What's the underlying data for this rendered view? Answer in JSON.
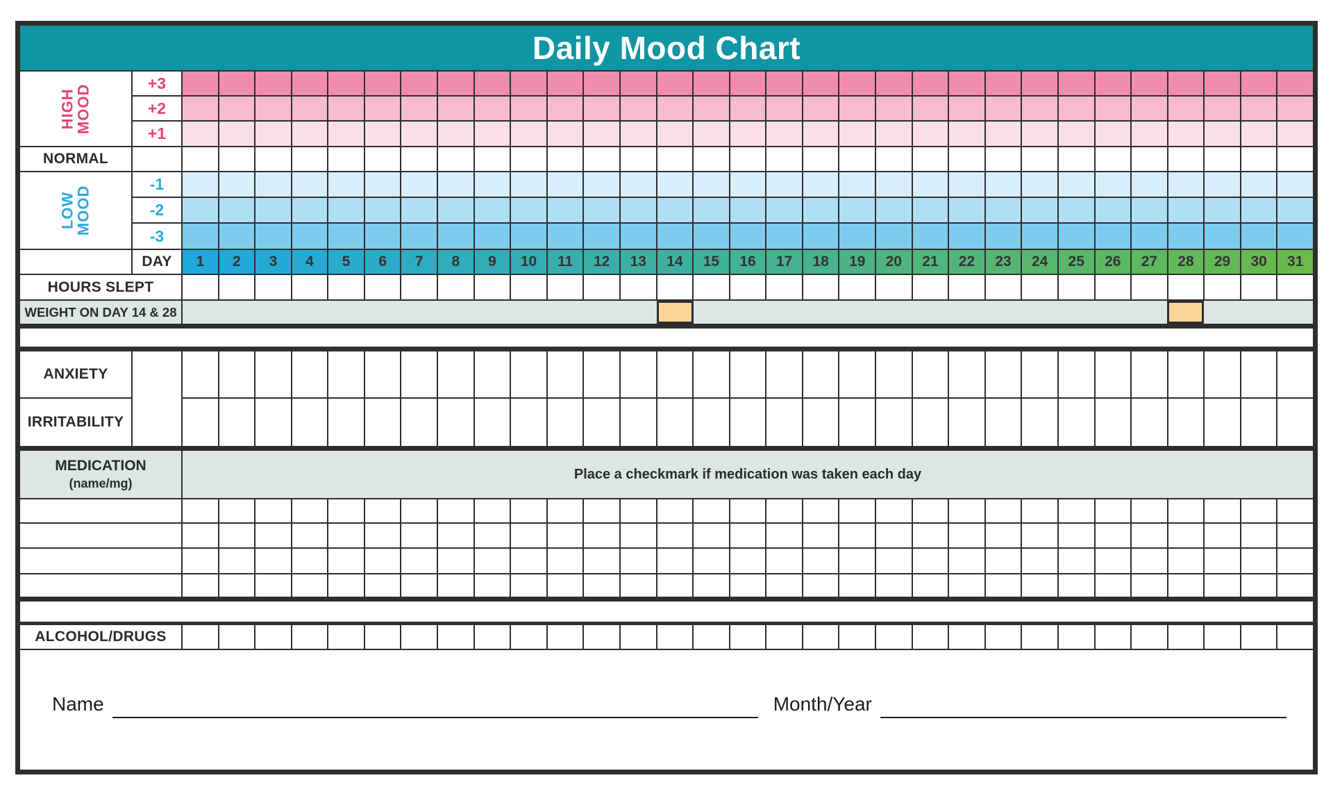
{
  "title": "Daily Mood Chart",
  "mood_section": {
    "high": {
      "label": "HIGH\nMOOD",
      "label_color": "#e8417b",
      "levels": [
        {
          "label": "+3",
          "color": "#f28cac"
        },
        {
          "label": "+2",
          "color": "#f7bbce"
        },
        {
          "label": "+1",
          "color": "#fbdee8"
        }
      ]
    },
    "normal": {
      "label": "NORMAL"
    },
    "low": {
      "label": "LOW\nMOOD",
      "label_color": "#2ba9e1",
      "levels": [
        {
          "label": "-1",
          "color": "#d8eefa"
        },
        {
          "label": "-2",
          "color": "#aedff5"
        },
        {
          "label": "-3",
          "color": "#7fcbee"
        }
      ]
    }
  },
  "day_row": {
    "label": "DAY",
    "days": [
      1,
      2,
      3,
      4,
      5,
      6,
      7,
      8,
      9,
      10,
      11,
      12,
      13,
      14,
      15,
      16,
      17,
      18,
      19,
      20,
      21,
      22,
      23,
      24,
      25,
      26,
      27,
      28,
      29,
      30,
      31
    ],
    "gradient_start": "#1fa8e0",
    "gradient_end": "#68bb4b",
    "number_color": "#333333"
  },
  "hours_row": {
    "label": "HOURS SLEPT"
  },
  "weight_row": {
    "label": "WEIGHT ON DAY 14 & 28",
    "highlight_days": [
      14,
      28
    ],
    "band_color": "#dce6e5",
    "highlight_color": "#fbd49a"
  },
  "anxiety_row": {
    "label": "ANXIETY"
  },
  "irritability_row": {
    "label": "IRRITABILITY"
  },
  "medication": {
    "label": "MEDICATION",
    "sublabel": "(name/mg)",
    "note": "Place a checkmark if medication was taken each day",
    "blank_row_count": 4
  },
  "alcohol_row": {
    "label": "ALCOHOL/DRUGS"
  },
  "footer": {
    "name_label": "Name",
    "month_label": "Month/Year"
  },
  "colors": {
    "header": "#0f95a3",
    "grid": "#2e2e2e"
  }
}
